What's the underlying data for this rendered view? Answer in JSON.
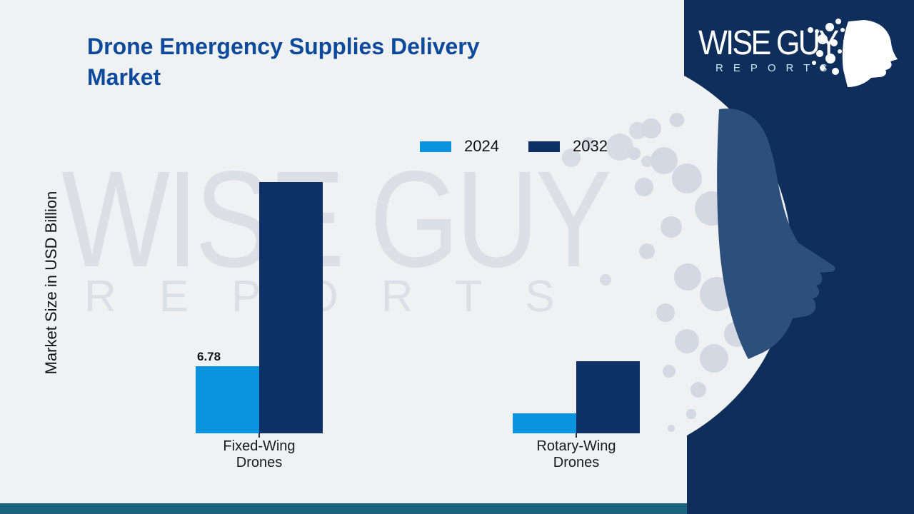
{
  "page": {
    "background_color": "#f0f1f3",
    "footer_bar_color": "#1a6480",
    "panel_color": "#0e2f5c",
    "accent_face_color": "#2d4f7c",
    "watermark_color": "#dcdfe6"
  },
  "title": {
    "line1": "Drone Emergency Supplies Delivery",
    "line2": "Market",
    "color": "#0d4a9c"
  },
  "chart_data": {
    "type": "bar",
    "categories": [
      "Fixed-Wing Drones",
      "Rotary-Wing Drones"
    ],
    "series": [
      {
        "name": "2024",
        "color": "#0a94e0",
        "values": [
          6.78,
          2.0
        ],
        "labels": [
          "6.78",
          null
        ]
      },
      {
        "name": "2032",
        "color": "#0d3166",
        "values": [
          25.4,
          7.3
        ],
        "labels": [
          null,
          null
        ]
      }
    ],
    "ylabel": "Market Size in USD Billion",
    "ylim": [
      0,
      27
    ],
    "grid": false,
    "legend_position": "top-center",
    "labeled_values_shown_on_chart": [
      "6.78"
    ]
  },
  "logo": {
    "line1": "WISE GUY",
    "line2": "REPORTS"
  },
  "watermark": {
    "line1": "WISE GUY",
    "line2": "REPORTS"
  }
}
